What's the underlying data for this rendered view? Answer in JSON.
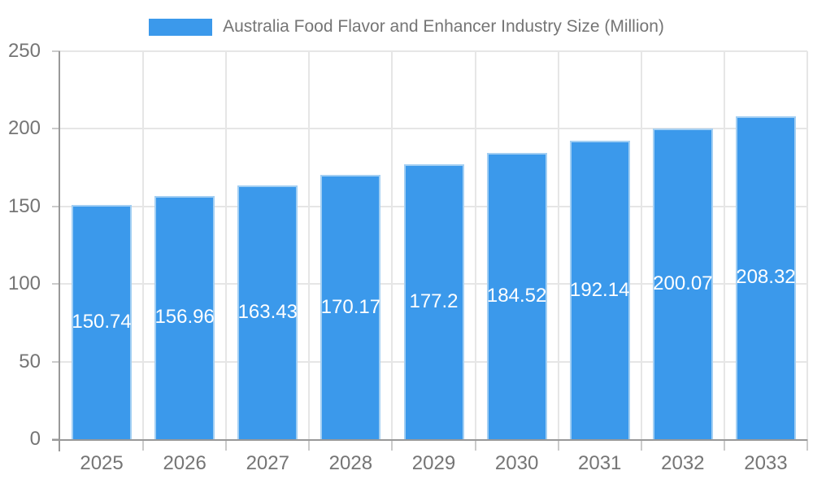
{
  "legend": {
    "label": "Australia Food Flavor and Enhancer Industry Size (Million)"
  },
  "chart_data": {
    "type": "bar",
    "title": "Australia Food Flavor and Enhancer Industry Size (Million)",
    "categories": [
      "2025",
      "2026",
      "2027",
      "2028",
      "2029",
      "2030",
      "2031",
      "2032",
      "2033"
    ],
    "values": [
      150.74,
      156.96,
      163.43,
      170.17,
      177.2,
      184.52,
      192.14,
      200.07,
      208.32
    ],
    "value_labels": [
      "150.74",
      "156.96",
      "163.43",
      "170.17",
      "177.2",
      "184.52",
      "192.14",
      "200.07",
      "208.32"
    ],
    "ytick_labels": [
      "0",
      "50",
      "100",
      "150",
      "200",
      "250"
    ],
    "yticks": [
      0,
      50,
      100,
      150,
      200,
      250
    ],
    "ylim": [
      0,
      250
    ],
    "xlabel": "",
    "ylabel": "",
    "grid": true,
    "legend_position": "top",
    "value_label_position": "bar-center",
    "colors": {
      "bar": "#3b99eb",
      "bar_border": "#a3cff3",
      "grid": "#e6e6e6",
      "tick": "#cbcbcb",
      "axis": "#999999",
      "text": "#757575",
      "value_label": "#ffffff"
    }
  }
}
